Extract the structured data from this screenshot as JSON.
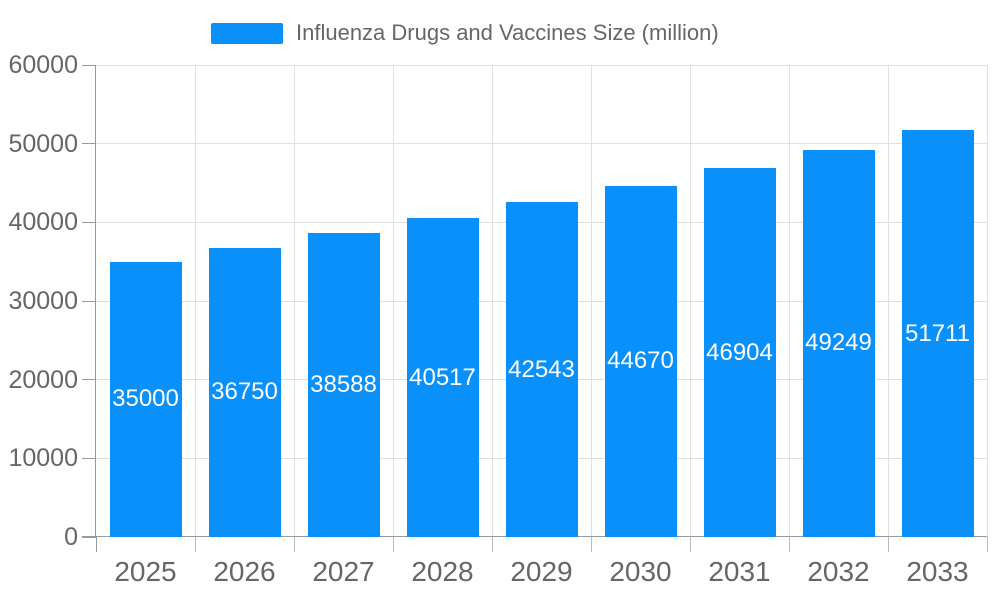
{
  "legend": {
    "label": "Influenza Drugs and Vaccines Size (million)"
  },
  "chart_data": {
    "type": "bar",
    "title": "Influenza Drugs and Vaccines Size (million)",
    "categories": [
      "2025",
      "2026",
      "2027",
      "2028",
      "2029",
      "2030",
      "2031",
      "2032",
      "2033"
    ],
    "values": [
      35000,
      36750,
      38588,
      40517,
      42543,
      44670,
      46904,
      49249,
      51711
    ],
    "xlabel": "",
    "ylabel": "",
    "ylim": [
      0,
      60000
    ],
    "yticks": [
      0,
      10000,
      20000,
      30000,
      40000,
      50000,
      60000
    ],
    "ytick_labels": [
      "0",
      "10000",
      "20000",
      "30000",
      "40000",
      "50000",
      "60000"
    ],
    "grid": true,
    "legend_position": "top-center",
    "bar_labels_position": "inside-center",
    "colors": {
      "bar": "#0A90FA",
      "bar_label_text": "#FFFFFF",
      "axis_line": "#999999",
      "tick_line": "#BBBBBB",
      "grid_line": "#E0E0E0",
      "axis_text": "#666666",
      "legend_text": "#666666",
      "background": "#FFFFFF"
    }
  }
}
